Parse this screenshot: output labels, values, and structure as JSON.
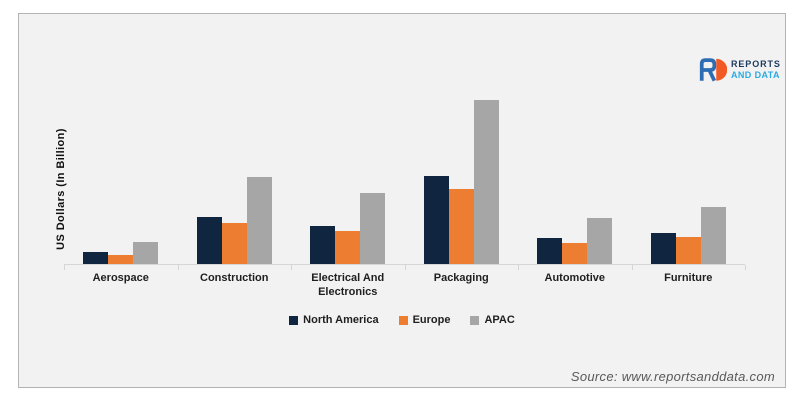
{
  "logo": {
    "line1": "REPORTS",
    "line2": "AND DATA",
    "r_color": "#2e6db4",
    "d_color": "#f15a24",
    "line1_color": "#1c3a5e",
    "line2_color": "#29abe2"
  },
  "colors": {
    "panel_background": "#f2f2f2",
    "panel_border": "#b3b3b3",
    "axis": "#d6d6d6"
  },
  "chart_data": {
    "type": "bar",
    "title": "",
    "xlabel": "",
    "ylabel": "US Dollars (In Billion)",
    "categories": [
      "Aerospace",
      "Construction",
      "Electrical And Electronics",
      "Packaging",
      "Automotive",
      "Furniture"
    ],
    "series": [
      {
        "name": "North America",
        "color": "#0f2540",
        "values": [
          1.2,
          4.7,
          3.8,
          8.8,
          2.6,
          3.1
        ]
      },
      {
        "name": "Europe",
        "color": "#ed7d31",
        "values": [
          0.9,
          4.1,
          3.3,
          7.5,
          2.1,
          2.7
        ]
      },
      {
        "name": "APAC",
        "color": "#a6a6a6",
        "values": [
          2.2,
          8.7,
          7.1,
          16.4,
          4.6,
          5.7
        ]
      }
    ],
    "ylim": [
      0,
      18
    ],
    "y_tick_labels_shown": false,
    "grid": false,
    "legend_position": "bottom",
    "note": "Axis has no numeric tick labels; values estimated from relative bar heights."
  },
  "source": {
    "label": "Source: www.reportsanddata.com"
  }
}
